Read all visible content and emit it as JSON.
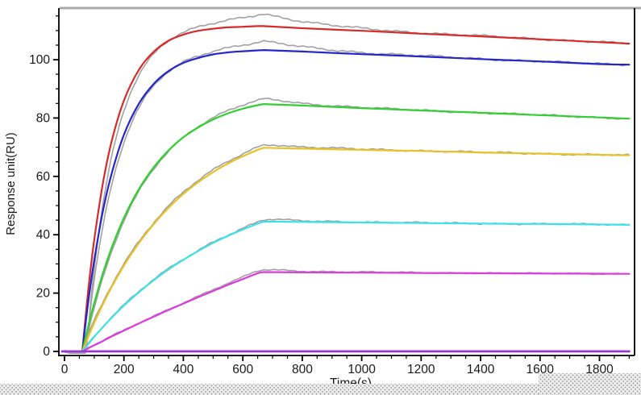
{
  "figure": {
    "kind": "SPR sensorgram (kinetics fit over measured curves)",
    "background_color": "#ffffff",
    "frame": {
      "top_border_color": "#a9a9a9",
      "axis_color": "#000000",
      "tick_label_color": "#1a1a1a"
    },
    "texture": {
      "description": "dotted gray pattern strips at bottom of screenshot",
      "dot_color": "#a3a3a3",
      "base_color": "#efefef"
    }
  },
  "chart_data": {
    "type": "line",
    "title": "",
    "xlabel": "Time(s)",
    "ylabel": "Response unit(RU)",
    "xlim": [
      -19,
      1918
    ],
    "ylim": [
      -1.4,
      117.7
    ],
    "x_major_ticks": [
      0,
      200,
      400,
      600,
      800,
      1000,
      1200,
      1400,
      1600,
      1800
    ],
    "x_minor_step": 50,
    "x_max_tick": 1900,
    "y_major_ticks": [
      0,
      20,
      40,
      60,
      80,
      100
    ],
    "y_minor_step": 5,
    "y_max_tick": 115,
    "grid": false,
    "legend": "none",
    "injection_start_s": 60,
    "injection_end_s": 670,
    "measured_color": "#a1a1a1",
    "series": [
      {
        "id": "red",
        "kind": "fit",
        "color": "#d62b2b",
        "peak_ru": 111.5,
        "end_ru": 105.5,
        "measured": {
          "peak_ru": 115.8,
          "overshoot": 4.3,
          "lag_s": 12,
          "tau_s": 200,
          "noise": 0.4
        },
        "points": [
          [
            0,
            0
          ],
          [
            60,
            0
          ],
          [
            80,
            21.1
          ],
          [
            100,
            38.3
          ],
          [
            130,
            58.1
          ],
          [
            160,
            72.6
          ],
          [
            200,
            86.0
          ],
          [
            250,
            96.5
          ],
          [
            300,
            102.7
          ],
          [
            350,
            106.5
          ],
          [
            400,
            108.6
          ],
          [
            450,
            109.9
          ],
          [
            500,
            110.6
          ],
          [
            550,
            111.1
          ],
          [
            600,
            111.3
          ],
          [
            650,
            111.5
          ],
          [
            670,
            111.5
          ],
          [
            800,
            110.8
          ],
          [
            1000,
            109.9
          ],
          [
            1200,
            108.9
          ],
          [
            1400,
            108.0
          ],
          [
            1600,
            107.0
          ],
          [
            1800,
            106.0
          ],
          [
            1900,
            105.5
          ]
        ]
      },
      {
        "id": "blue",
        "kind": "fit",
        "color": "#2525cc",
        "peak_ru": 103.3,
        "end_ru": 98.3,
        "measured": {
          "peak_ru": 106.3,
          "overshoot": 3.0,
          "lag_s": 10,
          "tau_s": 200,
          "noise": 0.4
        },
        "points": [
          [
            0,
            0
          ],
          [
            60,
            0
          ],
          [
            80,
            17.1
          ],
          [
            100,
            31.3
          ],
          [
            130,
            48.5
          ],
          [
            160,
            61.5
          ],
          [
            200,
            74.3
          ],
          [
            250,
            84.9
          ],
          [
            300,
            91.7
          ],
          [
            350,
            96.1
          ],
          [
            400,
            98.9
          ],
          [
            450,
            100.6
          ],
          [
            500,
            101.8
          ],
          [
            550,
            102.5
          ],
          [
            600,
            102.9
          ],
          [
            650,
            103.2
          ],
          [
            670,
            103.3
          ],
          [
            800,
            102.8
          ],
          [
            1000,
            101.9
          ],
          [
            1200,
            101.1
          ],
          [
            1400,
            100.2
          ],
          [
            1600,
            99.4
          ],
          [
            1800,
            98.5
          ],
          [
            1900,
            98.3
          ]
        ]
      },
      {
        "id": "green",
        "kind": "fit",
        "color": "#31cf31",
        "peak_ru": 84.8,
        "end_ru": 79.8,
        "measured": {
          "peak_ru": 86.6,
          "overshoot": 1.8,
          "lag_s": 5,
          "tau_s": 150,
          "noise": 0.35
        },
        "points": [
          [
            0,
            0
          ],
          [
            60,
            0
          ],
          [
            80,
            8.7
          ],
          [
            100,
            16.6
          ],
          [
            130,
            27.0
          ],
          [
            160,
            35.9
          ],
          [
            200,
            45.8
          ],
          [
            250,
            55.6
          ],
          [
            300,
            63.1
          ],
          [
            350,
            68.9
          ],
          [
            400,
            73.4
          ],
          [
            450,
            76.8
          ],
          [
            500,
            79.5
          ],
          [
            550,
            81.6
          ],
          [
            600,
            83.2
          ],
          [
            650,
            84.4
          ],
          [
            670,
            84.8
          ],
          [
            800,
            84.3
          ],
          [
            1000,
            83.4
          ],
          [
            1200,
            82.6
          ],
          [
            1400,
            81.8
          ],
          [
            1600,
            81.0
          ],
          [
            1800,
            80.2
          ],
          [
            1900,
            79.8
          ]
        ]
      },
      {
        "id": "gold",
        "kind": "fit",
        "color": "#e9c227",
        "peak_ru": 69.8,
        "end_ru": 67.2,
        "measured": {
          "peak_ru": 70.7,
          "overshoot": 0.9,
          "lag_s": -4,
          "tau_s": 260,
          "noise": 0.35
        },
        "points": [
          [
            0,
            0
          ],
          [
            60,
            0
          ],
          [
            80,
            5.0
          ],
          [
            100,
            9.8
          ],
          [
            130,
            16.3
          ],
          [
            160,
            22.3
          ],
          [
            200,
            29.4
          ],
          [
            250,
            37.1
          ],
          [
            300,
            43.6
          ],
          [
            350,
            49.2
          ],
          [
            400,
            54.0
          ],
          [
            450,
            58.0
          ],
          [
            500,
            61.5
          ],
          [
            550,
            64.4
          ],
          [
            600,
            66.9
          ],
          [
            650,
            69.1
          ],
          [
            670,
            69.8
          ],
          [
            800,
            69.5
          ],
          [
            1000,
            69.1
          ],
          [
            1200,
            68.7
          ],
          [
            1400,
            68.2
          ],
          [
            1600,
            67.8
          ],
          [
            1800,
            67.4
          ],
          [
            1900,
            67.2
          ]
        ]
      },
      {
        "id": "cyan",
        "kind": "fit",
        "color": "#3ce2e8",
        "peak_ru": 44.5,
        "end_ru": 43.4,
        "measured": {
          "peak_ru": 45.0,
          "overshoot": 0.5,
          "lag_s": -2,
          "tau_s": 300,
          "noise": 0.3
        },
        "points": [
          [
            0,
            0
          ],
          [
            60,
            0
          ],
          [
            80,
            2.5
          ],
          [
            100,
            5.0
          ],
          [
            130,
            8.4
          ],
          [
            160,
            11.7
          ],
          [
            200,
            15.7
          ],
          [
            250,
            20.3
          ],
          [
            300,
            24.4
          ],
          [
            350,
            28.1
          ],
          [
            400,
            31.4
          ],
          [
            450,
            34.4
          ],
          [
            500,
            37.2
          ],
          [
            550,
            39.6
          ],
          [
            600,
            41.8
          ],
          [
            650,
            43.8
          ],
          [
            670,
            44.5
          ],
          [
            800,
            44.4
          ],
          [
            1000,
            44.2
          ],
          [
            1200,
            44.0
          ],
          [
            1400,
            43.8
          ],
          [
            1600,
            43.7
          ],
          [
            1800,
            43.5
          ],
          [
            1900,
            43.4
          ]
        ]
      },
      {
        "id": "magenta",
        "kind": "fit",
        "color": "#dc3cdc",
        "peak_ru": 27.2,
        "end_ru": 26.6,
        "measured": {
          "peak_ru": 27.9,
          "overshoot": 0.7,
          "lag_s": -3,
          "tau_s": 280,
          "noise": 0.25
        },
        "points": [
          [
            0,
            0
          ],
          [
            60,
            0
          ],
          [
            80,
            1.1
          ],
          [
            100,
            2.1
          ],
          [
            130,
            3.6
          ],
          [
            160,
            5.2
          ],
          [
            200,
            7.1
          ],
          [
            250,
            9.6
          ],
          [
            300,
            11.9
          ],
          [
            350,
            14.2
          ],
          [
            400,
            16.4
          ],
          [
            450,
            18.6
          ],
          [
            500,
            20.7
          ],
          [
            550,
            22.8
          ],
          [
            600,
            24.8
          ],
          [
            650,
            26.8
          ],
          [
            670,
            27.2
          ],
          [
            800,
            27.1
          ],
          [
            1000,
            27.0
          ],
          [
            1200,
            26.9
          ],
          [
            1400,
            26.8
          ],
          [
            1600,
            26.7
          ],
          [
            1800,
            26.65
          ],
          [
            1900,
            26.6
          ]
        ]
      },
      {
        "id": "baseline",
        "kind": "baseline",
        "color": "#9c35d9",
        "peak_ru": 0,
        "end_ru": 0,
        "points": [
          [
            0,
            0
          ],
          [
            1900,
            0
          ]
        ]
      }
    ]
  }
}
